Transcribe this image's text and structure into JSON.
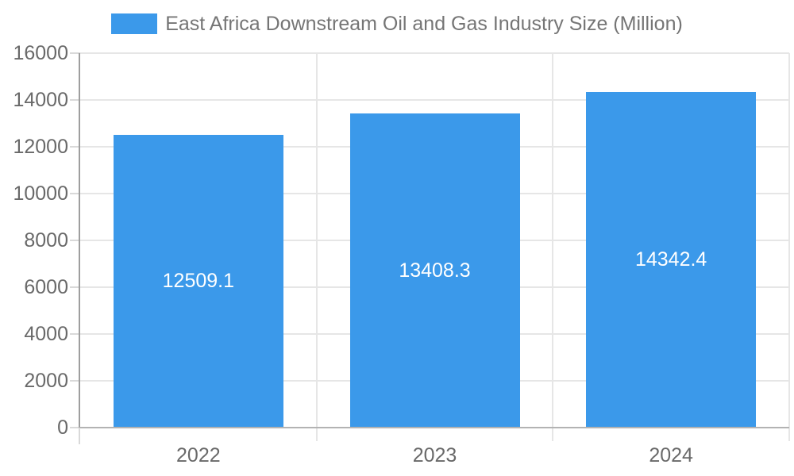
{
  "legend": {
    "title": "East Africa Downstream Oil and Gas Industry Size (Million)"
  },
  "chart_data": {
    "type": "bar",
    "title": "East Africa Downstream Oil and Gas Industry Size (Million)",
    "categories": [
      "2022",
      "2023",
      "2024"
    ],
    "values": [
      12509.1,
      13408.3,
      14342.4
    ],
    "data_labels": [
      "12509.1",
      "13408.3",
      "14342.4"
    ],
    "xlabel": "",
    "ylabel": "",
    "ylim": [
      0,
      16000
    ],
    "ytick_step": 2000,
    "ytick_labels": [
      "0",
      "2000",
      "4000",
      "6000",
      "8000",
      "10000",
      "12000",
      "14000",
      "16000"
    ],
    "grid": true,
    "legend_position": "top",
    "colors": {
      "bar": "#3b99ea",
      "grid": "#e6e6e6",
      "separator": "#e6e6e6",
      "axis": "#9e9e9e",
      "baseline": "#b3b3b3",
      "tick": "#d9d9d9",
      "axis_label": "#696969",
      "legend_text": "#757575",
      "data_label": "#ffffff",
      "background": "#ffffff"
    }
  }
}
